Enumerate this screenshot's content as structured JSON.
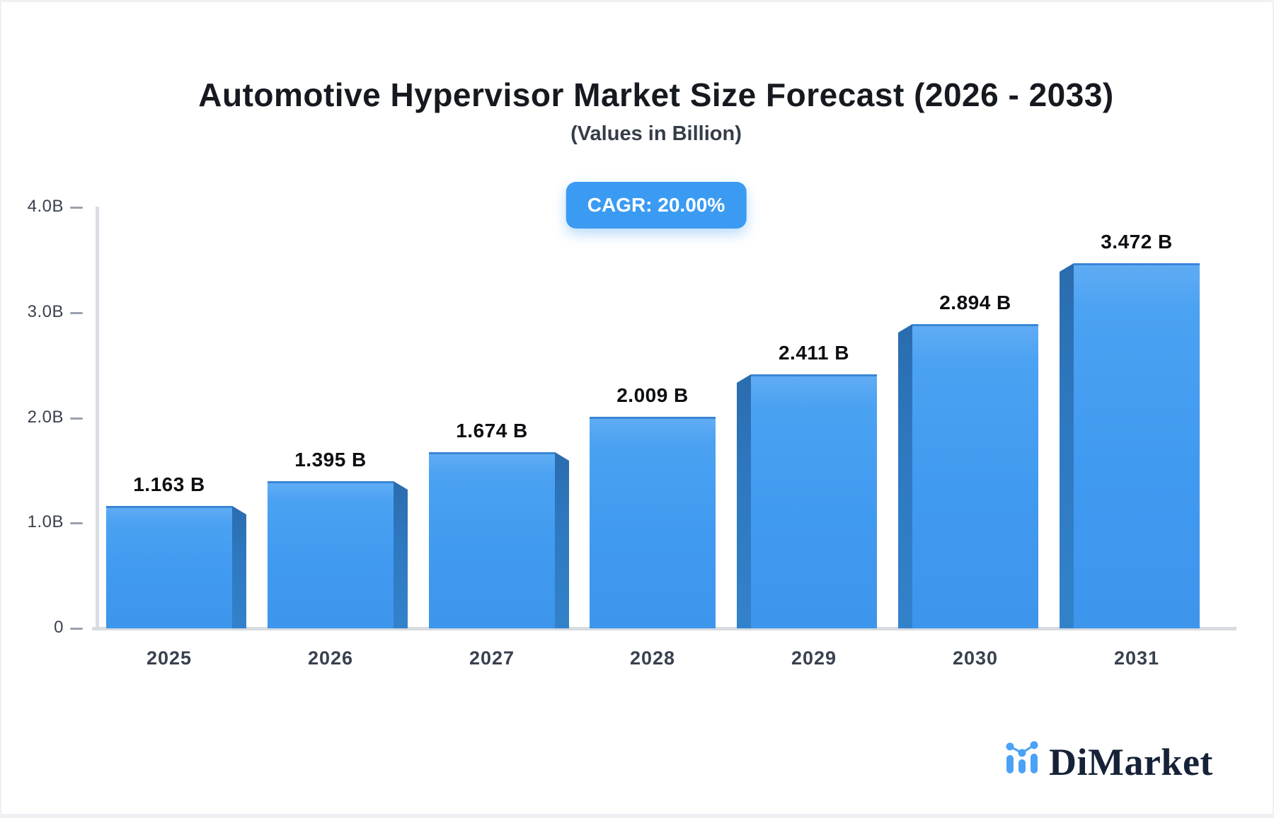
{
  "title": "Automotive Hypervisor Market Size Forecast (2026 - 2033)",
  "subtitle": "(Values in Billion)",
  "cagr_badge": "CAGR: 20.00%",
  "brand": {
    "name": "DiMarket",
    "icon": "bar-line-chart-icon",
    "icon_color": "#4aa2f6",
    "text_color": "#162238"
  },
  "chart_data": {
    "type": "bar",
    "title": "Automotive Hypervisor Market Size Forecast (2026 - 2033)",
    "subtitle": "(Values in Billion)",
    "categories": [
      "2025",
      "2026",
      "2027",
      "2028",
      "2029",
      "2030",
      "2031"
    ],
    "values": [
      1.163,
      1.395,
      1.674,
      2.009,
      2.411,
      2.894,
      3.472
    ],
    "value_labels": [
      "1.163 B",
      "1.395 B",
      "1.674 B",
      "2.009 B",
      "2.411 B",
      "2.894 B",
      "3.472 B"
    ],
    "y_ticks": [
      {
        "label": "4.0B",
        "v": 4.0
      },
      {
        "label": "3.0B",
        "v": 3.0
      },
      {
        "label": "2.0B",
        "v": 2.0
      },
      {
        "label": "1.0B",
        "v": 1.0
      },
      {
        "label": "0",
        "v": 0.0
      }
    ],
    "ylim": [
      0,
      4.0
    ],
    "xlabel": "",
    "ylabel": "",
    "grid": false,
    "legend": false,
    "bar_color": "#409af0",
    "bar_side_color": "#2e78c0",
    "style": "3d-perspective-center"
  }
}
